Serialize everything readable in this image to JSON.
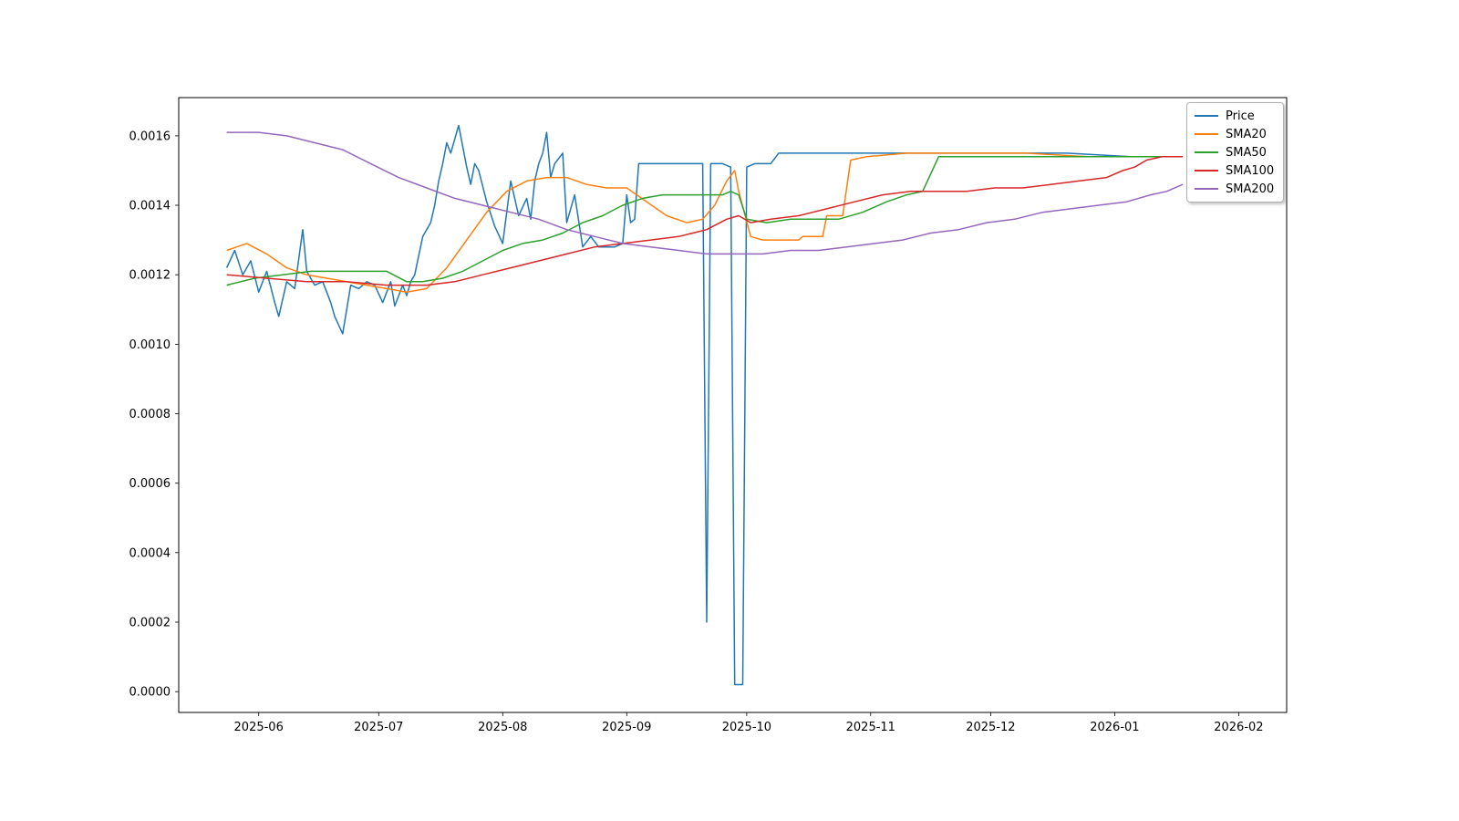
{
  "figure": {
    "background": "#ffffff"
  },
  "chart_data": {
    "type": "line",
    "title": "",
    "xlabel": "",
    "ylabel": "",
    "grid": false,
    "xlim": [
      "2025-05-12",
      "2026-02-13"
    ],
    "ylim": [
      -6e-05,
      0.00171
    ],
    "x_ticks": [
      "2025-06",
      "2025-07",
      "2025-08",
      "2025-09",
      "2025-10",
      "2025-11",
      "2025-12",
      "2026-01",
      "2026-02"
    ],
    "y_ticks": [
      0.0,
      0.0002,
      0.0004,
      0.0006,
      0.0008,
      0.001,
      0.0012,
      0.0014,
      0.0016
    ],
    "y_tick_labels": [
      "0.0000",
      "0.0002",
      "0.0004",
      "0.0006",
      "0.0008",
      "0.0010",
      "0.0012",
      "0.0014",
      "0.0016"
    ],
    "legend": {
      "position": "upper right",
      "entries": [
        "Price",
        "SMA20",
        "SMA50",
        "SMA100",
        "SMA200"
      ]
    },
    "series": [
      {
        "name": "Price",
        "color": "#1f77b4",
        "points": [
          [
            "2025-05-24",
            0.00122
          ],
          [
            "2025-05-26",
            0.00127
          ],
          [
            "2025-05-28",
            0.0012
          ],
          [
            "2025-05-30",
            0.00124
          ],
          [
            "2025-06-01",
            0.00115
          ],
          [
            "2025-06-03",
            0.00121
          ],
          [
            "2025-06-05",
            0.00112
          ],
          [
            "2025-06-06",
            0.00108
          ],
          [
            "2025-06-08",
            0.00118
          ],
          [
            "2025-06-10",
            0.00116
          ],
          [
            "2025-06-12",
            0.00133
          ],
          [
            "2025-06-13",
            0.00121
          ],
          [
            "2025-06-15",
            0.00117
          ],
          [
            "2025-06-17",
            0.00118
          ],
          [
            "2025-06-19",
            0.00112
          ],
          [
            "2025-06-20",
            0.00108
          ],
          [
            "2025-06-22",
            0.00103
          ],
          [
            "2025-06-24",
            0.00117
          ],
          [
            "2025-06-26",
            0.00116
          ],
          [
            "2025-06-28",
            0.00118
          ],
          [
            "2025-06-30",
            0.00117
          ],
          [
            "2025-07-02",
            0.00112
          ],
          [
            "2025-07-04",
            0.00118
          ],
          [
            "2025-07-05",
            0.00111
          ],
          [
            "2025-07-07",
            0.00117
          ],
          [
            "2025-07-08",
            0.00114
          ],
          [
            "2025-07-09",
            0.00118
          ],
          [
            "2025-07-10",
            0.0012
          ],
          [
            "2025-07-12",
            0.00131
          ],
          [
            "2025-07-14",
            0.00135
          ],
          [
            "2025-07-15",
            0.0014
          ],
          [
            "2025-07-16",
            0.00147
          ],
          [
            "2025-07-17",
            0.00152
          ],
          [
            "2025-07-18",
            0.00158
          ],
          [
            "2025-07-19",
            0.00155
          ],
          [
            "2025-07-21",
            0.00163
          ],
          [
            "2025-07-22",
            0.00157
          ],
          [
            "2025-07-23",
            0.00151
          ],
          [
            "2025-07-24",
            0.00146
          ],
          [
            "2025-07-25",
            0.00152
          ],
          [
            "2025-07-26",
            0.0015
          ],
          [
            "2025-07-28",
            0.00141
          ],
          [
            "2025-07-30",
            0.00134
          ],
          [
            "2025-08-01",
            0.00129
          ],
          [
            "2025-08-03",
            0.00147
          ],
          [
            "2025-08-05",
            0.00137
          ],
          [
            "2025-08-07",
            0.00142
          ],
          [
            "2025-08-08",
            0.00136
          ],
          [
            "2025-08-09",
            0.00147
          ],
          [
            "2025-08-10",
            0.00152
          ],
          [
            "2025-08-11",
            0.00155
          ],
          [
            "2025-08-12",
            0.00161
          ],
          [
            "2025-08-13",
            0.00148
          ],
          [
            "2025-08-14",
            0.00152
          ],
          [
            "2025-08-16",
            0.00155
          ],
          [
            "2025-08-17",
            0.00135
          ],
          [
            "2025-08-19",
            0.00143
          ],
          [
            "2025-08-21",
            0.00128
          ],
          [
            "2025-08-23",
            0.00131
          ],
          [
            "2025-08-25",
            0.00128
          ],
          [
            "2025-08-27",
            0.00128
          ],
          [
            "2025-08-29",
            0.00128
          ],
          [
            "2025-08-31",
            0.00129
          ],
          [
            "2025-09-01",
            0.00143
          ],
          [
            "2025-09-02",
            0.00135
          ],
          [
            "2025-09-03",
            0.00136
          ],
          [
            "2025-09-04",
            0.00152
          ],
          [
            "2025-09-10",
            0.00152
          ],
          [
            "2025-09-16",
            0.00152
          ],
          [
            "2025-09-20",
            0.00152
          ],
          [
            "2025-09-21",
            0.0002
          ],
          [
            "2025-09-22",
            0.00152
          ],
          [
            "2025-09-25",
            0.00152
          ],
          [
            "2025-09-27",
            0.00151
          ],
          [
            "2025-09-28",
            2e-05
          ],
          [
            "2025-09-30",
            2e-05
          ],
          [
            "2025-10-01",
            0.00151
          ],
          [
            "2025-10-03",
            0.00152
          ],
          [
            "2025-10-07",
            0.00152
          ],
          [
            "2025-10-09",
            0.00155
          ],
          [
            "2025-10-15",
            0.00155
          ],
          [
            "2025-10-25",
            0.00155
          ],
          [
            "2025-11-05",
            0.00155
          ],
          [
            "2025-11-20",
            0.00155
          ],
          [
            "2025-12-05",
            0.00155
          ],
          [
            "2025-12-20",
            0.00155
          ],
          [
            "2026-01-05",
            0.00154
          ],
          [
            "2026-01-18",
            0.00154
          ]
        ]
      },
      {
        "name": "SMA20",
        "color": "#ff7f0e",
        "points": [
          [
            "2025-05-24",
            0.00127
          ],
          [
            "2025-05-29",
            0.00129
          ],
          [
            "2025-06-03",
            0.00126
          ],
          [
            "2025-06-08",
            0.00122
          ],
          [
            "2025-06-13",
            0.0012
          ],
          [
            "2025-06-18",
            0.00119
          ],
          [
            "2025-06-23",
            0.00118
          ],
          [
            "2025-06-28",
            0.00117
          ],
          [
            "2025-07-03",
            0.00116
          ],
          [
            "2025-07-08",
            0.00115
          ],
          [
            "2025-07-13",
            0.00116
          ],
          [
            "2025-07-18",
            0.00122
          ],
          [
            "2025-07-23",
            0.0013
          ],
          [
            "2025-07-28",
            0.00138
          ],
          [
            "2025-08-02",
            0.00144
          ],
          [
            "2025-08-07",
            0.00147
          ],
          [
            "2025-08-12",
            0.00148
          ],
          [
            "2025-08-17",
            0.00148
          ],
          [
            "2025-08-22",
            0.00146
          ],
          [
            "2025-08-27",
            0.00145
          ],
          [
            "2025-09-01",
            0.00145
          ],
          [
            "2025-09-06",
            0.00141
          ],
          [
            "2025-09-11",
            0.00137
          ],
          [
            "2025-09-16",
            0.00135
          ],
          [
            "2025-09-20",
            0.00136
          ],
          [
            "2025-09-23",
            0.0014
          ],
          [
            "2025-09-26",
            0.00147
          ],
          [
            "2025-09-28",
            0.0015
          ],
          [
            "2025-09-29",
            0.00144
          ],
          [
            "2025-10-02",
            0.00131
          ],
          [
            "2025-10-05",
            0.0013
          ],
          [
            "2025-10-10",
            0.0013
          ],
          [
            "2025-10-14",
            0.0013
          ],
          [
            "2025-10-15",
            0.00131
          ],
          [
            "2025-10-20",
            0.00131
          ],
          [
            "2025-10-21",
            0.00137
          ],
          [
            "2025-10-25",
            0.00137
          ],
          [
            "2025-10-27",
            0.00153
          ],
          [
            "2025-10-31",
            0.00154
          ],
          [
            "2025-11-10",
            0.00155
          ],
          [
            "2025-11-25",
            0.00155
          ],
          [
            "2025-12-10",
            0.00155
          ],
          [
            "2025-12-25",
            0.00154
          ],
          [
            "2026-01-10",
            0.00154
          ],
          [
            "2026-01-18",
            0.00154
          ]
        ]
      },
      {
        "name": "SMA50",
        "color": "#2ca02c",
        "points": [
          [
            "2025-05-24",
            0.00117
          ],
          [
            "2025-05-31",
            0.00119
          ],
          [
            "2025-06-07",
            0.0012
          ],
          [
            "2025-06-14",
            0.00121
          ],
          [
            "2025-06-21",
            0.00121
          ],
          [
            "2025-06-28",
            0.00121
          ],
          [
            "2025-07-03",
            0.00121
          ],
          [
            "2025-07-08",
            0.00118
          ],
          [
            "2025-07-12",
            0.00118
          ],
          [
            "2025-07-17",
            0.00119
          ],
          [
            "2025-07-22",
            0.00121
          ],
          [
            "2025-07-27",
            0.00124
          ],
          [
            "2025-08-01",
            0.00127
          ],
          [
            "2025-08-06",
            0.00129
          ],
          [
            "2025-08-11",
            0.0013
          ],
          [
            "2025-08-16",
            0.00132
          ],
          [
            "2025-08-21",
            0.00135
          ],
          [
            "2025-08-26",
            0.00137
          ],
          [
            "2025-08-31",
            0.0014
          ],
          [
            "2025-09-05",
            0.00142
          ],
          [
            "2025-09-10",
            0.00143
          ],
          [
            "2025-09-15",
            0.00143
          ],
          [
            "2025-09-20",
            0.00143
          ],
          [
            "2025-09-25",
            0.00143
          ],
          [
            "2025-09-27",
            0.00144
          ],
          [
            "2025-09-29",
            0.00143
          ],
          [
            "2025-10-01",
            0.00136
          ],
          [
            "2025-10-06",
            0.00135
          ],
          [
            "2025-10-12",
            0.00136
          ],
          [
            "2025-10-18",
            0.00136
          ],
          [
            "2025-10-24",
            0.00136
          ],
          [
            "2025-10-30",
            0.00138
          ],
          [
            "2025-11-05",
            0.00141
          ],
          [
            "2025-11-10",
            0.00143
          ],
          [
            "2025-11-14",
            0.00144
          ],
          [
            "2025-11-16",
            0.00149
          ],
          [
            "2025-11-18",
            0.00154
          ],
          [
            "2025-11-25",
            0.00154
          ],
          [
            "2025-12-10",
            0.00154
          ],
          [
            "2025-12-25",
            0.00154
          ],
          [
            "2026-01-10",
            0.00154
          ],
          [
            "2026-01-18",
            0.00154
          ]
        ]
      },
      {
        "name": "SMA100",
        "color": "#d62728",
        "points": [
          [
            "2025-05-24",
            0.0012
          ],
          [
            "2025-06-03",
            0.00119
          ],
          [
            "2025-06-13",
            0.00118
          ],
          [
            "2025-06-23",
            0.00118
          ],
          [
            "2025-07-03",
            0.00117
          ],
          [
            "2025-07-13",
            0.00117
          ],
          [
            "2025-07-20",
            0.00118
          ],
          [
            "2025-07-27",
            0.0012
          ],
          [
            "2025-08-03",
            0.00122
          ],
          [
            "2025-08-10",
            0.00124
          ],
          [
            "2025-08-17",
            0.00126
          ],
          [
            "2025-08-24",
            0.00128
          ],
          [
            "2025-08-31",
            0.00129
          ],
          [
            "2025-09-07",
            0.0013
          ],
          [
            "2025-09-14",
            0.00131
          ],
          [
            "2025-09-21",
            0.00133
          ],
          [
            "2025-09-26",
            0.00136
          ],
          [
            "2025-09-29",
            0.00137
          ],
          [
            "2025-10-02",
            0.00135
          ],
          [
            "2025-10-07",
            0.00136
          ],
          [
            "2025-10-14",
            0.00137
          ],
          [
            "2025-10-21",
            0.00139
          ],
          [
            "2025-10-28",
            0.00141
          ],
          [
            "2025-11-04",
            0.00143
          ],
          [
            "2025-11-11",
            0.00144
          ],
          [
            "2025-11-18",
            0.00144
          ],
          [
            "2025-11-25",
            0.00144
          ],
          [
            "2025-12-02",
            0.00145
          ],
          [
            "2025-12-09",
            0.00145
          ],
          [
            "2025-12-16",
            0.00146
          ],
          [
            "2025-12-23",
            0.00147
          ],
          [
            "2025-12-30",
            0.00148
          ],
          [
            "2026-01-03",
            0.0015
          ],
          [
            "2026-01-06",
            0.00151
          ],
          [
            "2026-01-09",
            0.00153
          ],
          [
            "2026-01-13",
            0.00154
          ],
          [
            "2026-01-18",
            0.00154
          ]
        ]
      },
      {
        "name": "SMA200",
        "color": "#9467bd",
        "points": [
          [
            "2025-05-24",
            0.00161
          ],
          [
            "2025-06-01",
            0.00161
          ],
          [
            "2025-06-08",
            0.0016
          ],
          [
            "2025-06-15",
            0.00158
          ],
          [
            "2025-06-22",
            0.00156
          ],
          [
            "2025-06-29",
            0.00152
          ],
          [
            "2025-07-06",
            0.00148
          ],
          [
            "2025-07-13",
            0.00145
          ],
          [
            "2025-07-20",
            0.00142
          ],
          [
            "2025-07-27",
            0.0014
          ],
          [
            "2025-08-03",
            0.00138
          ],
          [
            "2025-08-10",
            0.00136
          ],
          [
            "2025-08-17",
            0.00133
          ],
          [
            "2025-08-24",
            0.00131
          ],
          [
            "2025-08-31",
            0.00129
          ],
          [
            "2025-09-07",
            0.00128
          ],
          [
            "2025-09-14",
            0.00127
          ],
          [
            "2025-09-21",
            0.00126
          ],
          [
            "2025-09-28",
            0.00126
          ],
          [
            "2025-10-05",
            0.00126
          ],
          [
            "2025-10-12",
            0.00127
          ],
          [
            "2025-10-19",
            0.00127
          ],
          [
            "2025-10-26",
            0.00128
          ],
          [
            "2025-11-02",
            0.00129
          ],
          [
            "2025-11-09",
            0.0013
          ],
          [
            "2025-11-16",
            0.00132
          ],
          [
            "2025-11-23",
            0.00133
          ],
          [
            "2025-11-30",
            0.00135
          ],
          [
            "2025-12-07",
            0.00136
          ],
          [
            "2025-12-14",
            0.00138
          ],
          [
            "2025-12-21",
            0.00139
          ],
          [
            "2025-12-28",
            0.0014
          ],
          [
            "2026-01-04",
            0.00141
          ],
          [
            "2026-01-10",
            0.00143
          ],
          [
            "2026-01-14",
            0.00144
          ],
          [
            "2026-01-18",
            0.00146
          ]
        ]
      }
    ]
  }
}
